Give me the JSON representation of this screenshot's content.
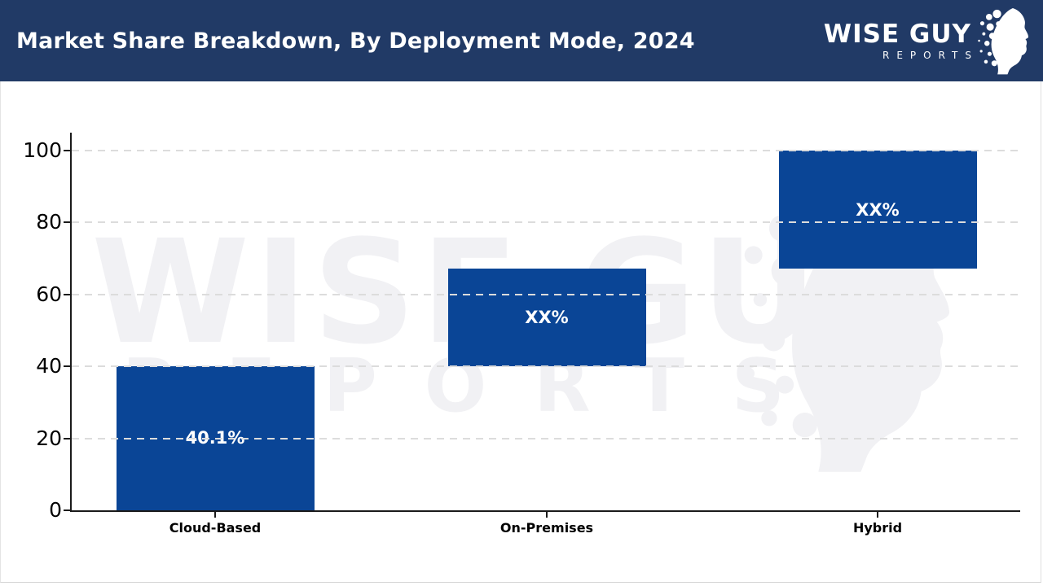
{
  "header": {
    "title": "Market Share Breakdown, By Deployment Mode, 2024",
    "logo": {
      "line1": "WISE GUY",
      "line2": "REPORTS"
    }
  },
  "watermark": {
    "line1": "WISE GUY",
    "line2": "REPORTS"
  },
  "colors": {
    "header_bg": "#213A66",
    "bar": "#0A4596",
    "grid": "#DCDCDC",
    "axis": "#1A1A1A",
    "value_label": "#FFFFFF",
    "watermark": "#F1F1F4"
  },
  "chart_data": {
    "type": "bar",
    "subtype": "floating-stacked-percentage",
    "title": "Market Share Breakdown, By Deployment Mode, 2024",
    "categories": [
      "Cloud-Based",
      "On-Premises",
      "Hybrid"
    ],
    "bars": [
      {
        "category": "Cloud-Based",
        "start": 0,
        "end": 40.1,
        "label": "40.1%"
      },
      {
        "category": "On-Premises",
        "start": 40.1,
        "end": 67.2,
        "label": "XX%"
      },
      {
        "category": "Hybrid",
        "start": 67.2,
        "end": 100,
        "label": "XX%"
      }
    ],
    "xlabel": "",
    "ylabel": "",
    "yticks": [
      0,
      20,
      40,
      60,
      80,
      100
    ],
    "ylim": [
      0,
      105
    ],
    "grid": "dashed-horizontal",
    "legend": "none"
  }
}
